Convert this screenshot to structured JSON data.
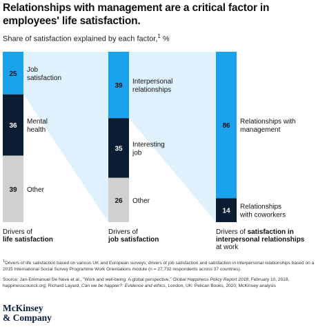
{
  "title": "Relationships with management are a critical factor in employees' life satisfaction.",
  "subtitle": "Share of satisfaction explained by each factor,",
  "subtitle_sup": "1",
  "subtitle_unit": " %",
  "chart_data": {
    "type": "bar",
    "stacked": true,
    "unit": "%",
    "columns": [
      {
        "axis_label_line1": "Drivers of",
        "axis_label_line2": "life satisfaction",
        "segments": [
          {
            "value": 25,
            "label_lines": [
              "Job",
              "satisfaction"
            ],
            "color": "#1aa2ee",
            "text_color": "#111111"
          },
          {
            "value": 36,
            "label_lines": [
              "Mental",
              "health"
            ],
            "color": "#0b1d33",
            "text_color": "#ffffff"
          },
          {
            "value": 39,
            "label_lines": [
              "Other"
            ],
            "color": "#d0d0d0",
            "text_color": "#111111"
          }
        ]
      },
      {
        "axis_label_line1": "Drivers of",
        "axis_label_line2": "job satisfaction",
        "segments": [
          {
            "value": 39,
            "label_lines": [
              "Interpersonal",
              "relationships"
            ],
            "color": "#1aa2ee",
            "text_color": "#111111"
          },
          {
            "value": 35,
            "label_lines": [
              "Interesting",
              "job"
            ],
            "color": "#0b1d33",
            "text_color": "#ffffff"
          },
          {
            "value": 26,
            "label_lines": [
              "Other"
            ],
            "color": "#d0d0d0",
            "text_color": "#111111"
          }
        ]
      },
      {
        "axis_label_line1": "Drivers of",
        "axis_label_line2": "satisfaction in interpersonal relationships",
        "axis_label_line3": "at work",
        "segments": [
          {
            "value": 86,
            "label_lines": [
              "Relationships with",
              "management"
            ],
            "color": "#1aa2ee",
            "text_color": "#111111"
          },
          {
            "value": 14,
            "label_lines": [
              "Relationships",
              "with coworkers"
            ],
            "color": "#0b1d33",
            "text_color": "#ffffff"
          }
        ]
      }
    ],
    "connector_color": "#dff1fc"
  },
  "footnote": "Drivers of life satisfaction based on various UK and European surveys; drivers of job satisfaction and satisfaction in interpersonal relationships based on a 2015 International Social Survey Programme Work Orientations module (n = 27,732 respondents across 37 countries).",
  "footnote_marker": "1",
  "source": {
    "prefix": "Source: Jan-Emmanuel De Neve et al., \"Work and well-being: A global perspective,\"",
    "title1": "Global Happiness Policy Report 2018",
    "mid": ", February 10, 2018, happinesscouncil.org; Richard Layard,",
    "title2": "Can we be happier?: Evidence and ethics",
    "suffix": ", London, UK: Pelican Books, 2020; McKinsey analysis"
  },
  "brand": {
    "line1": "McKinsey",
    "line2": "& Company"
  }
}
